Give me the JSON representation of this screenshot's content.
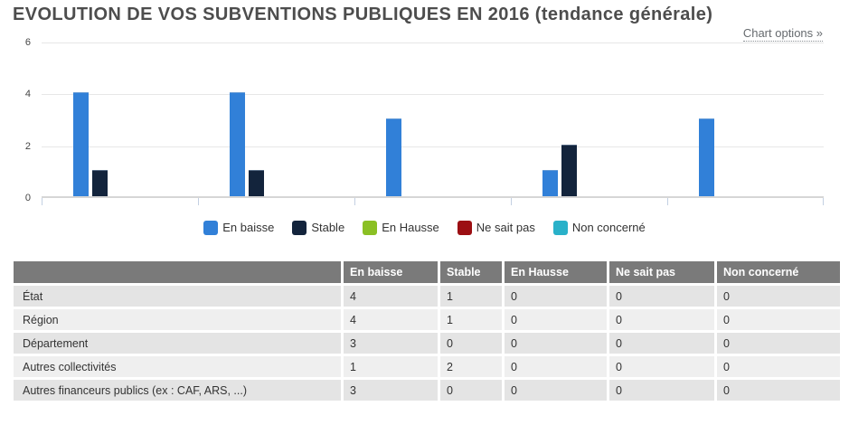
{
  "page": {
    "title": "EVOLUTION DE VOS SUBVENTIONS PUBLIQUES EN 2016 (tendance générale)",
    "chart_options_label": "Chart options »"
  },
  "colors": {
    "en_baisse": "#3180d8",
    "stable": "#13243c",
    "en_hausse": "#8bc024",
    "ne_sait_pas": "#9c0f13",
    "non_concerne": "#29b1c9",
    "grid_line": "#e7e7e7",
    "axis_line": "#d6d6d6",
    "tick": "#c3d0e2",
    "table_header_bg": "#7a7a7a"
  },
  "chart_data": {
    "type": "bar",
    "title": "EVOLUTION DE VOS SUBVENTIONS PUBLIQUES EN 2016 (tendance générale)",
    "categories": [
      "État",
      "Région",
      "Département",
      "Autres collectivités",
      "Autres financeurs publics (ex : CAF, ARS, ...)"
    ],
    "series": [
      {
        "name": "En baisse",
        "color": "#3180d8",
        "values": [
          4,
          4,
          3,
          1,
          3
        ]
      },
      {
        "name": "Stable",
        "color": "#13243c",
        "values": [
          1,
          1,
          0,
          2,
          0
        ]
      },
      {
        "name": "En Hausse",
        "color": "#8bc024",
        "values": [
          0,
          0,
          0,
          0,
          0
        ]
      },
      {
        "name": "Ne sait pas",
        "color": "#9c0f13",
        "values": [
          0,
          0,
          0,
          0,
          0
        ]
      },
      {
        "name": "Non concerné",
        "color": "#29b1c9",
        "values": [
          0,
          0,
          0,
          0,
          0
        ]
      }
    ],
    "xlabel": "",
    "ylabel": "",
    "ylim": [
      0,
      6
    ],
    "yticks": [
      0,
      2,
      4,
      6
    ],
    "grid": true,
    "x_category_labels_shown": false,
    "legend_position": "bottom"
  },
  "table": {
    "columns": [
      "",
      "En baisse",
      "Stable",
      "En Hausse",
      "Ne sait pas",
      "Non concerné"
    ],
    "rows": [
      {
        "label": "État",
        "values": [
          4,
          1,
          0,
          0,
          0
        ]
      },
      {
        "label": "Région",
        "values": [
          4,
          1,
          0,
          0,
          0
        ]
      },
      {
        "label": "Département",
        "values": [
          3,
          0,
          0,
          0,
          0
        ]
      },
      {
        "label": "Autres collectivités",
        "values": [
          1,
          2,
          0,
          0,
          0
        ]
      },
      {
        "label": "Autres financeurs publics (ex : CAF, ARS, ...)",
        "values": [
          3,
          0,
          0,
          0,
          0
        ]
      }
    ]
  }
}
